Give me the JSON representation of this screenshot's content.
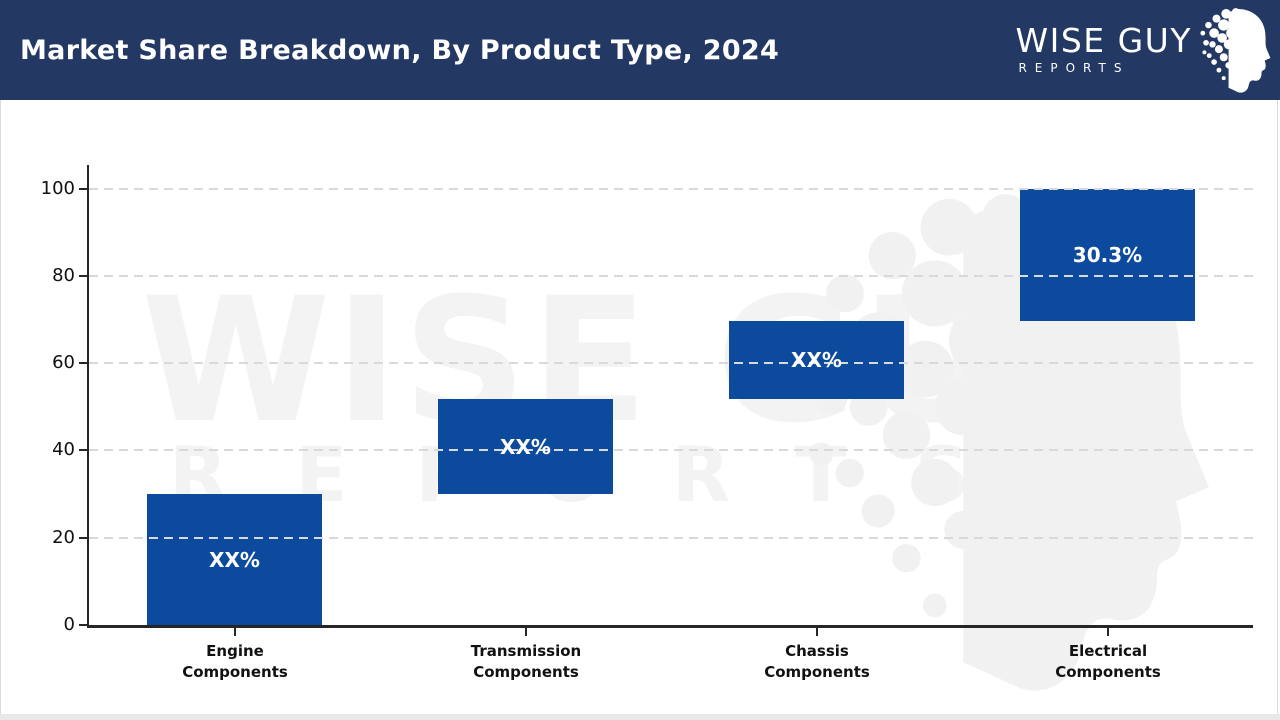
{
  "header": {
    "title": "Market Share Breakdown, By Product Type, 2024",
    "logo_line1": "WISE GUY",
    "logo_line2": "REPORTS"
  },
  "watermark": {
    "line1": "WISE GUY",
    "line2": "REPORTS"
  },
  "chart_data": {
    "type": "bar",
    "subtype": "waterfall",
    "title": "Market Share Breakdown, By Product Type, 2024",
    "categories": [
      "Engine Components",
      "Transmission Components",
      "Chassis Components",
      "Electrical Components"
    ],
    "bars": [
      {
        "category": "Engine Components",
        "start": 0,
        "end": 30.0,
        "label": "XX%"
      },
      {
        "category": "Transmission Components",
        "start": 30.0,
        "end": 51.8,
        "label": "XX%"
      },
      {
        "category": "Chassis Components",
        "start": 51.8,
        "end": 69.7,
        "label": "XX%"
      },
      {
        "category": "Electrical Components",
        "start": 69.7,
        "end": 100.0,
        "label": "30.3%"
      }
    ],
    "xlabel": "",
    "ylabel": "",
    "ylim": [
      0,
      100
    ],
    "y_ticks": [
      0,
      20,
      40,
      60,
      80,
      100
    ],
    "grid": "horizontal-dashed",
    "legend": "none",
    "bar_color": "#0c4a9e",
    "bar_label_color": "#ffffff"
  },
  "colors": {
    "header_bg": "#233963",
    "bar_blue": "#0c4a9e",
    "gridline": "#d9d9d9",
    "axis": "#262626",
    "watermark": "#f3f3f3",
    "footer_strip": "#e8e8e8"
  }
}
